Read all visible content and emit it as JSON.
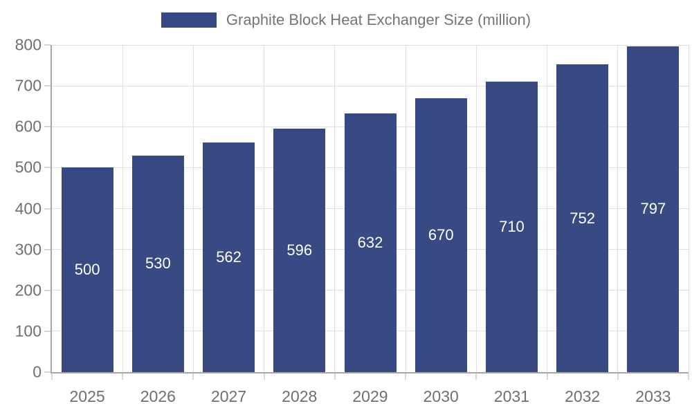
{
  "chart_data": {
    "type": "bar",
    "title": "Graphite Block Heat Exchanger Size (million)",
    "categories": [
      "2025",
      "2026",
      "2027",
      "2028",
      "2029",
      "2030",
      "2031",
      "2032",
      "2033"
    ],
    "values": [
      500,
      530,
      562,
      596,
      632,
      670,
      710,
      752,
      797
    ],
    "series": [
      {
        "name": "Graphite Block Heat Exchanger Size (million)",
        "values": [
          500,
          530,
          562,
          596,
          632,
          670,
          710,
          752,
          797
        ]
      }
    ],
    "xlabel": "",
    "ylabel": "",
    "ylim": [
      0,
      800
    ],
    "ytick_step": 100,
    "yticks": [
      0,
      100,
      200,
      300,
      400,
      500,
      600,
      700,
      800
    ],
    "grid": true,
    "legend_position": "top-center",
    "value_labels": "inside-center",
    "colors": {
      "bar": "#374a84",
      "value_label_text": "#ffffff",
      "axis_text": "#6f6f6f",
      "legend_text": "#757575",
      "gridline": "#e0e0e0",
      "axis_line": "#a6a6a6",
      "background": "#ffffff"
    }
  }
}
